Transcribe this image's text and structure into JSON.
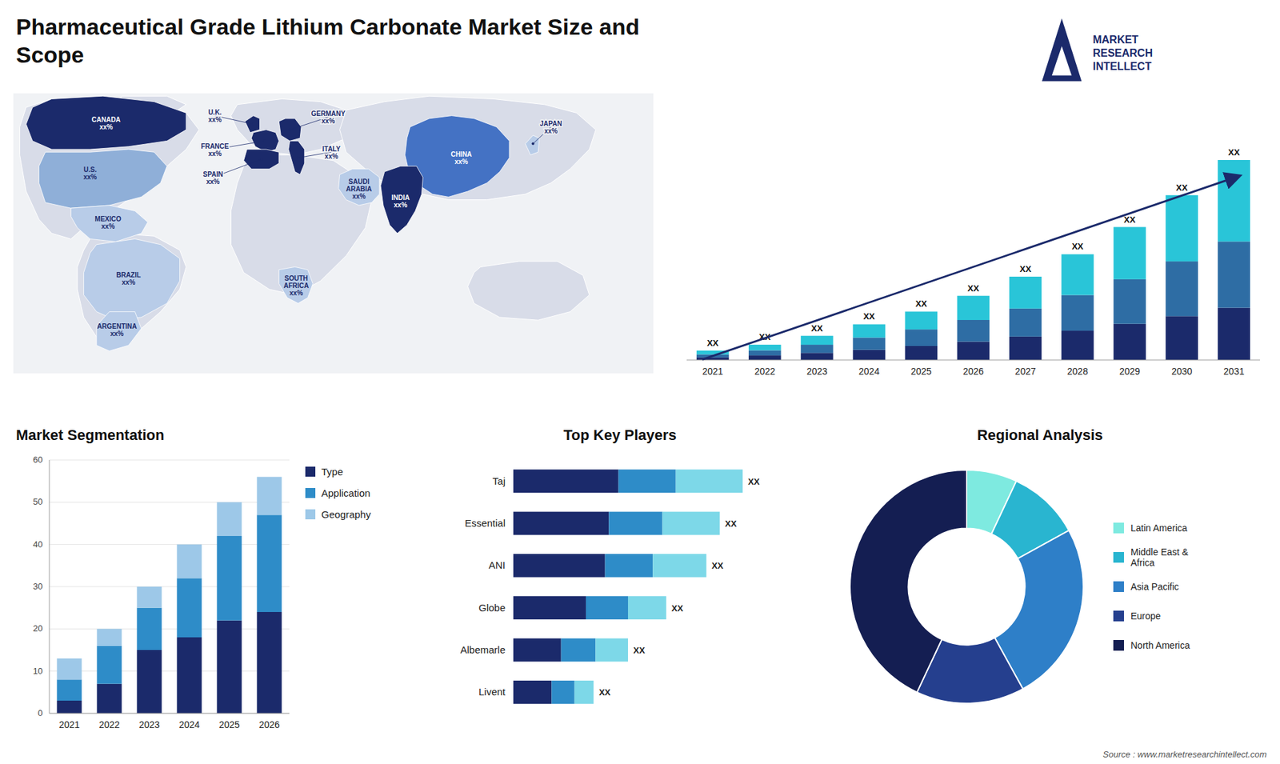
{
  "title": "Pharmaceutical Grade Lithium Carbonate Market Size and\nScope",
  "annotations": [
    "Source : www.marketresearchintellect.com",
    "MARKET\nRESEARCH\nINTELLECT"
  ],
  "chart_data": [
    {
      "type": "map",
      "categories": [
        "CANADA\nxx%",
        "U.S.\nxx%",
        "MEXICO\nxx%",
        "BRAZIL\nxx%",
        "ARGENTINA\nxx%",
        "U.K.\nxx%",
        "FRANCE\nxx%",
        "SPAIN\nxx%",
        "GERMANY\nxx%",
        "ITALY\nxx%",
        "SAUDI\nARABIA\nxx%",
        "SOUTH\nAFRICA\nxx%",
        "CHINA\nxx%",
        "INDIA\nxx%",
        "JAPAN\nxx%"
      ],
      "colors": [
        "#1b2a6b",
        "#8fafd8",
        "#b8cce8",
        "#b8cce8",
        "#b8cce8",
        "#1b2a6b",
        "#1b2a6b",
        "#1b2a6b",
        "#1b2a6b",
        "#1b2a6b",
        "#b8cce8",
        "#b8cce8",
        "#4472c4",
        "#1b2a6b",
        "#b8cce8"
      ]
    },
    {
      "type": "bar",
      "stacked": true,
      "categories": [
        "2021",
        "2022",
        "2023",
        "2024",
        "2025",
        "2026",
        "2027",
        "2028",
        "2029",
        "2030",
        "2031"
      ],
      "series": [
        {
          "color": "#1b2a6b",
          "values": [
            1.0,
            1.8,
            2.8,
            4.0,
            5.5,
            7.2,
            9.2,
            11.5,
            14.2,
            17.2,
            20.5
          ]
        },
        {
          "color": "#2e6da4",
          "values": [
            1.2,
            2.0,
            3.2,
            4.8,
            6.5,
            8.5,
            11.0,
            14.0,
            17.5,
            21.5,
            26.0
          ]
        },
        {
          "color": "#29c5d8",
          "values": [
            1.5,
            2.2,
            3.5,
            5.2,
            7.0,
            9.5,
            12.5,
            16.0,
            20.5,
            26.0,
            32.0
          ]
        }
      ],
      "value_labels": [
        "XX",
        "XX",
        "XX",
        "XX",
        "XX",
        "XX",
        "XX",
        "XX",
        "XX",
        "XX",
        "XX"
      ],
      "ylim": [
        0,
        94.2
      ],
      "tick_labels": "x",
      "grid": false
    },
    {
      "type": "bar",
      "stacked": true,
      "title": "Market Segmentation",
      "categories": [
        "2021",
        "2022",
        "2023",
        "2024",
        "2025",
        "2026"
      ],
      "series": [
        {
          "name": "Type",
          "color": "#1b2a6b",
          "values": [
            3,
            7,
            15,
            18,
            22,
            24
          ]
        },
        {
          "name": "Application",
          "color": "#2e8cc8",
          "values": [
            5,
            9,
            10,
            14,
            20,
            23
          ]
        },
        {
          "name": "Geography",
          "color": "#9dc8e8",
          "values": [
            5,
            4,
            5,
            8,
            8,
            9
          ]
        }
      ],
      "ylim": [
        0,
        60
      ],
      "yticks": [
        0,
        10,
        20,
        30,
        40,
        50,
        60
      ],
      "grid": true,
      "legend": "right"
    },
    {
      "type": "bar",
      "stacked": true,
      "orientation": "horizontal",
      "title": "Top Key Players",
      "categories": [
        "Taj",
        "Essential",
        "ANI",
        "Globe",
        "Albemarle",
        "Livent"
      ],
      "series": [
        {
          "color": "#1b2a6b",
          "values": [
            5.5,
            5.0,
            4.8,
            3.8,
            2.5,
            2.0
          ]
        },
        {
          "color": "#2e8cc8",
          "values": [
            3.0,
            2.8,
            2.5,
            2.2,
            1.8,
            1.2
          ]
        },
        {
          "color": "#7dd8e8",
          "values": [
            3.5,
            3.0,
            2.8,
            2.0,
            1.7,
            1.0
          ]
        }
      ],
      "value_labels": [
        "XX",
        "XX",
        "XX",
        "XX",
        "XX",
        "XX"
      ],
      "xlim": [
        0,
        15
      ],
      "tick_labels": "y",
      "grid": false
    },
    {
      "type": "donut",
      "title": "Regional Analysis",
      "categories": [
        "Latin America",
        "Middle East &\nAfrica",
        "Asia Pacific",
        "Europe",
        "North America"
      ],
      "values": [
        7,
        10,
        25,
        15,
        43
      ],
      "colors": [
        "#7eeae0",
        "#29b5d0",
        "#2e7fc8",
        "#253f8e",
        "#141e52"
      ],
      "legend": "right"
    }
  ]
}
